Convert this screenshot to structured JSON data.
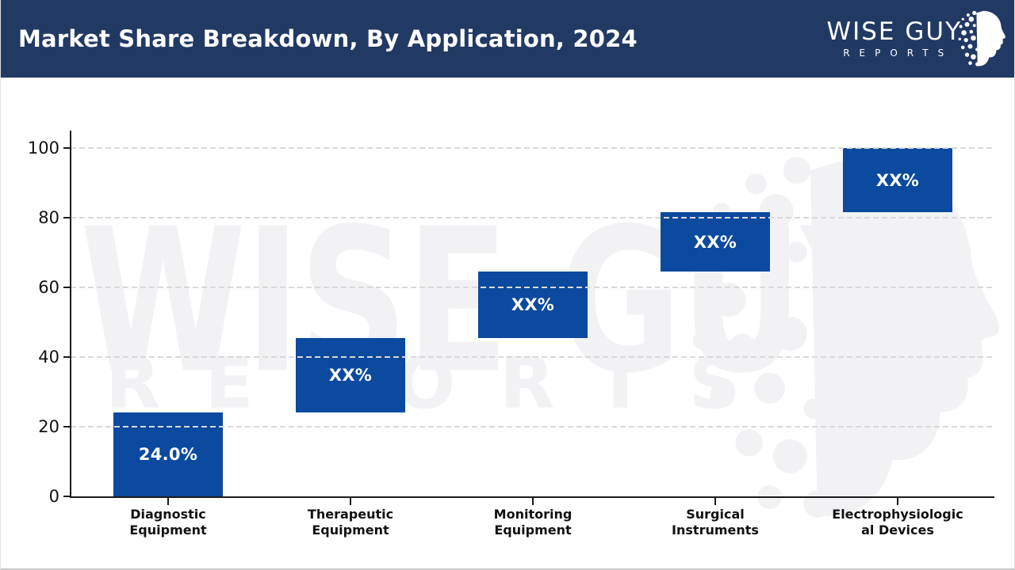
{
  "header": {
    "title": "Market Share Breakdown, By Application, 2024"
  },
  "brand": {
    "name_line1": "WISE GUY",
    "name_line2": "REPORTS"
  },
  "watermark": {
    "line1": "WISE GUY",
    "line2": "REPORTS"
  },
  "colors": {
    "header_bg": "#213A64",
    "bar": "#0B4A9E",
    "grid": "#D9D9D9",
    "axis": "#1A1A1A",
    "bar_label": "#FFFFFF",
    "tick_text": "#111111",
    "watermark": "#F2F2F4"
  },
  "chart_data": {
    "type": "bar",
    "subtype": "floating-segment-waterfall",
    "title": "Market Share Breakdown, By Application, 2024",
    "categories": [
      "Diagnostic\nEquipment",
      "Therapeutic\nEquipment",
      "Monitoring\nEquipment",
      "Surgical\nInstruments",
      "Electrophysiologic\nal Devices"
    ],
    "segments": [
      {
        "category": "Diagnostic Equipment",
        "start": 0,
        "end": 24.0,
        "label": "24.0%"
      },
      {
        "category": "Therapeutic Equipment",
        "start": 24.0,
        "end": 45.5,
        "label": "XX%"
      },
      {
        "category": "Monitoring Equipment",
        "start": 45.5,
        "end": 64.5,
        "label": "XX%"
      },
      {
        "category": "Surgical Instruments",
        "start": 64.5,
        "end": 81.5,
        "label": "XX%"
      },
      {
        "category": "Electrophysiological Devices",
        "start": 81.5,
        "end": 100.0,
        "label": "XX%"
      }
    ],
    "yticks": [
      0,
      20,
      40,
      60,
      80,
      100
    ],
    "ylim": [
      0,
      105
    ],
    "xlabel": "",
    "ylabel": "",
    "grid": "horizontal dashed",
    "legend": "none"
  }
}
